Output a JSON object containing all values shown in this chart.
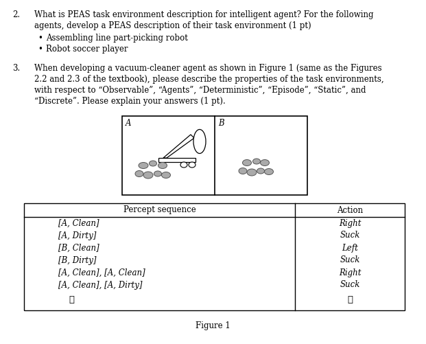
{
  "bg_color": "#ffffff",
  "fig_width": 6.21,
  "fig_height": 5.01,
  "dpi": 100,
  "q2_number": "2.",
  "q2_text_line1": "What is PEAS task environment description for intelligent agent? For the following",
  "q2_text_line2": "agents, develop a PEAS description of their task environment (1 pt)",
  "q2_bullet1": "Assembling line part-picking robot",
  "q2_bullet2": "Robot soccer player",
  "q3_number": "3.",
  "q3_text_line1": "When developing a vacuum-cleaner agent as shown in Figure 1 (same as the Figures",
  "q3_text_line2": "2.2 and 2.3 of the textbook), please describe the properties of the task environments,",
  "q3_text_line3": "with respect to “Observable”, “Agents”, “Deterministic”, “Episode”, “Static”, and",
  "q3_text_line4": "“Discrete”. Please explain your answers (1 pt).",
  "table_header_col1": "Percept sequence",
  "table_header_col2": "Action",
  "table_rows": [
    [
      "[A, Clean]",
      "Right"
    ],
    [
      "[A, Dirty]",
      "Suck"
    ],
    [
      "[B, Clean]",
      "Left"
    ],
    [
      "[B, Dirty]",
      "Suck"
    ],
    [
      "[A, Clean], [A, Clean]",
      "Right"
    ],
    [
      "[A, Clean], [A, Dirty]",
      "Suck"
    ]
  ],
  "figure_caption": "Figure 1",
  "font_size_text": 8.5,
  "font_size_table": 8.5,
  "font_size_caption": 8.5
}
